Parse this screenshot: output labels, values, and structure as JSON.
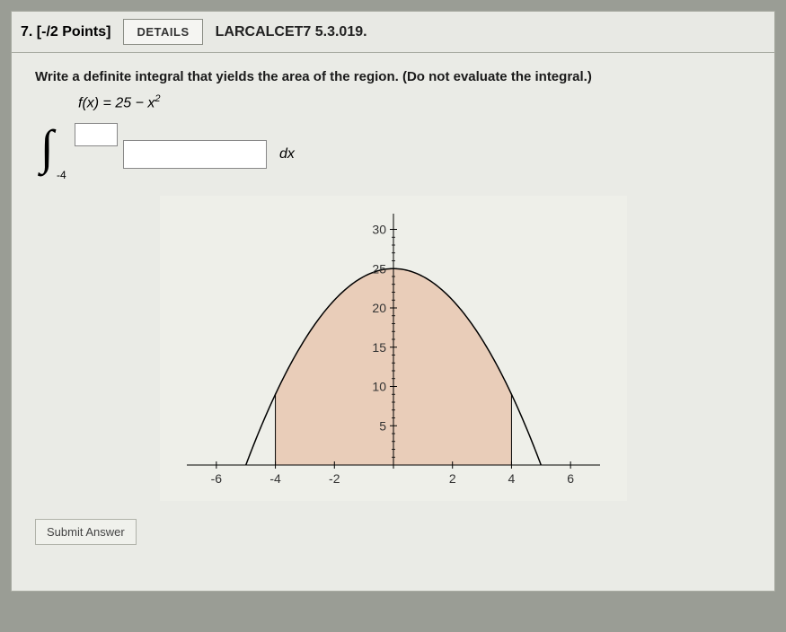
{
  "header": {
    "number": "7.",
    "points": "[-/2 Points]",
    "details_label": "DETAILS",
    "source": "LARCALCET7 5.3.019."
  },
  "question": {
    "prompt": "Write a definite integral that yields the area of the region. (Do not evaluate the integral.)",
    "fx_lhs": "f(x) = ",
    "fx_rhs_num": "25 − x",
    "fx_exp": "2",
    "lower_limit": "-4",
    "dx_label": "dx"
  },
  "chart": {
    "type": "area",
    "function": "25 - x^2",
    "x_domain": [
      -5,
      5
    ],
    "shaded_x": [
      -4,
      4
    ],
    "x_ticks": [
      -6,
      -4,
      -2,
      2,
      4,
      6
    ],
    "y_ticks": [
      5,
      10,
      15,
      20,
      25,
      30
    ],
    "xlim": [
      -7,
      7
    ],
    "ylim": [
      0,
      32
    ],
    "fill_color": "#e9cdb9",
    "curve_color": "#000000",
    "axis_color": "#000000",
    "background_color": "#eeefe9",
    "tick_fontsize": 14,
    "curve_width": 1.5
  },
  "submit_label": "Submit Answer"
}
